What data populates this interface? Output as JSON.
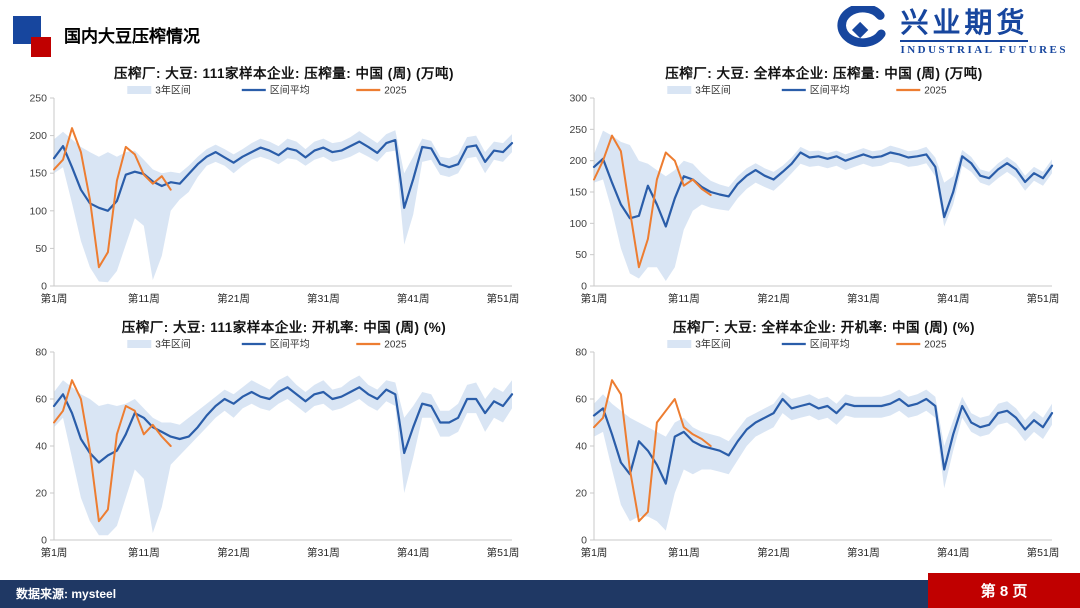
{
  "header": {
    "title": "国内大豆压榨情况"
  },
  "logo": {
    "cn": "兴业期货",
    "en": "INDUSTRIAL FUTURES",
    "icon": "swirl-logo-icon"
  },
  "footer": {
    "source_label": "数据来源:",
    "source_value": "mysteel",
    "page_label": "第 8 页"
  },
  "colors": {
    "band": "#d9e5f4",
    "mean": "#2a5da9",
    "y2025": "#ed7d31",
    "axis": "#c9c9c9",
    "navy": "#1f3864",
    "red": "#c00000",
    "brand_blue": "#17469e"
  },
  "chart_data": [
    {
      "type": "line",
      "title": "压榨厂: 大豆: 111家样本企业: 压榨量: 中国 (周)  (万吨)",
      "ylabel": "万吨",
      "ylim": [
        0,
        250
      ],
      "yticks": [
        0,
        50,
        100,
        150,
        200,
        250
      ],
      "x": {
        "weeks": 52,
        "tick_weeks": [
          1,
          11,
          21,
          31,
          41,
          51
        ],
        "tick_labels": [
          "第1周",
          "第11周",
          "第21周",
          "第31周",
          "第41周",
          "第51周"
        ]
      },
      "legend": [
        "3年区间",
        "区间平均",
        "2025"
      ],
      "band": {
        "name": "3年区间",
        "lower": [
          150,
          158,
          110,
          60,
          25,
          6,
          5,
          20,
          55,
          90,
          80,
          8,
          40,
          100,
          115,
          125,
          145,
          160,
          165,
          160,
          150,
          160,
          168,
          172,
          168,
          162,
          170,
          168,
          160,
          168,
          172,
          165,
          168,
          172,
          178,
          172,
          165,
          178,
          180,
          55,
          95,
          165,
          168,
          148,
          145,
          150,
          170,
          172,
          150,
          168,
          165,
          178
        ],
        "upper": [
          195,
          205,
          195,
          185,
          178,
          172,
          178,
          172,
          178,
          180,
          168,
          155,
          150,
          152,
          150,
          160,
          172,
          182,
          188,
          182,
          175,
          182,
          190,
          196,
          192,
          186,
          196,
          192,
          182,
          192,
          196,
          190,
          192,
          198,
          206,
          198,
          190,
          202,
          207,
          150,
          172,
          196,
          193,
          172,
          170,
          175,
          198,
          200,
          178,
          192,
          190,
          202
        ]
      },
      "mean": {
        "name": "区间平均",
        "values": [
          170,
          186,
          158,
          128,
          110,
          104,
          100,
          113,
          148,
          152,
          149,
          139,
          133,
          138,
          136,
          149,
          162,
          172,
          178,
          171,
          164,
          172,
          178,
          184,
          180,
          174,
          183,
          180,
          171,
          180,
          184,
          178,
          180,
          186,
          192,
          185,
          177,
          190,
          194,
          104,
          142,
          185,
          183,
          162,
          158,
          162,
          185,
          187,
          165,
          180,
          178,
          190
        ]
      },
      "y2025": {
        "name": "2025",
        "values": [
          155,
          168,
          210,
          178,
          115,
          25,
          45,
          140,
          185,
          175,
          148,
          136,
          146,
          128
        ]
      }
    },
    {
      "type": "line",
      "title": "压榨厂: 大豆: 全样本企业: 压榨量: 中国 (周)  (万吨)",
      "ylabel": "万吨",
      "ylim": [
        0,
        300
      ],
      "yticks": [
        0,
        50,
        100,
        150,
        200,
        250,
        300
      ],
      "x": {
        "weeks": 52,
        "tick_weeks": [
          1,
          11,
          21,
          31,
          41,
          51
        ],
        "tick_labels": [
          "第1周",
          "第11周",
          "第21周",
          "第31周",
          "第41周",
          "第51周"
        ]
      },
      "legend": [
        "3年区间",
        "区间平均",
        "2025"
      ],
      "band": {
        "name": "3年区间",
        "lower": [
          165,
          170,
          120,
          60,
          20,
          12,
          30,
          30,
          8,
          30,
          90,
          120,
          130,
          125,
          122,
          120,
          140,
          155,
          165,
          158,
          152,
          165,
          180,
          195,
          190,
          192,
          188,
          192,
          185,
          190,
          195,
          190,
          192,
          198,
          196,
          190,
          192,
          196,
          175,
          95,
          130,
          192,
          182,
          165,
          160,
          172,
          182,
          172,
          152,
          168,
          160,
          180
        ],
        "upper": [
          210,
          248,
          240,
          230,
          225,
          200,
          195,
          185,
          175,
          185,
          200,
          195,
          180,
          168,
          162,
          158,
          175,
          188,
          196,
          188,
          182,
          192,
          205,
          222,
          215,
          216,
          212,
          216,
          210,
          215,
          220,
          215,
          217,
          224,
          220,
          215,
          217,
          222,
          205,
          165,
          175,
          217,
          206,
          186,
          182,
          196,
          206,
          196,
          176,
          190,
          182,
          202
        ]
      },
      "mean": {
        "name": "区间平均",
        "values": [
          190,
          203,
          165,
          130,
          108,
          112,
          160,
          130,
          95,
          140,
          175,
          170,
          158,
          150,
          146,
          143,
          163,
          176,
          185,
          176,
          170,
          182,
          195,
          213,
          205,
          207,
          203,
          207,
          200,
          205,
          210,
          205,
          207,
          213,
          210,
          205,
          207,
          210,
          190,
          110,
          150,
          207,
          196,
          176,
          172,
          186,
          196,
          186,
          166,
          180,
          172,
          192
        ]
      },
      "y2025": {
        "name": "2025",
        "values": [
          170,
          200,
          240,
          215,
          120,
          30,
          75,
          170,
          213,
          200,
          160,
          170,
          155,
          145
        ]
      }
    },
    {
      "type": "line",
      "title": "压榨厂: 大豆: 111家样本企业: 开机率: 中国 (周)  (%)",
      "ylabel": "%",
      "ylim": [
        0,
        80
      ],
      "yticks": [
        0,
        20,
        40,
        60,
        80
      ],
      "x": {
        "weeks": 52,
        "tick_weeks": [
          1,
          11,
          21,
          31,
          41,
          51
        ],
        "tick_labels": [
          "第1周",
          "第11周",
          "第21周",
          "第31周",
          "第41周",
          "第51周"
        ]
      },
      "legend": [
        "3年区间",
        "区间平均",
        "2025"
      ],
      "band": {
        "name": "3年区间",
        "lower": [
          48,
          52,
          35,
          18,
          8,
          2,
          2,
          6,
          18,
          30,
          26,
          3,
          14,
          32,
          36,
          40,
          44,
          48,
          52,
          55,
          52,
          56,
          58,
          56,
          55,
          58,
          60,
          57,
          54,
          57,
          58,
          55,
          56,
          58,
          60,
          57,
          55,
          59,
          57,
          20,
          35,
          52,
          52,
          44,
          44,
          46,
          54,
          54,
          46,
          52,
          50,
          56
        ],
        "upper": [
          63,
          68,
          65,
          62,
          60,
          57,
          58,
          57,
          58,
          60,
          56,
          52,
          50,
          50,
          49,
          52,
          55,
          58,
          61,
          64,
          62,
          65,
          68,
          66,
          64,
          68,
          70,
          66,
          63,
          66,
          68,
          64,
          65,
          68,
          70,
          66,
          64,
          68,
          67,
          52,
          57,
          63,
          62,
          55,
          55,
          58,
          66,
          67,
          60,
          65,
          63,
          68
        ]
      },
      "mean": {
        "name": "区间平均",
        "values": [
          57,
          62,
          54,
          43,
          37,
          33,
          36,
          38,
          45,
          54,
          52,
          48,
          46,
          44,
          43,
          44,
          48,
          53,
          57,
          60,
          58,
          61,
          63,
          61,
          60,
          63,
          65,
          62,
          59,
          62,
          63,
          60,
          61,
          63,
          65,
          62,
          60,
          64,
          62,
          37,
          48,
          58,
          57,
          50,
          50,
          52,
          60,
          60,
          54,
          59,
          57,
          62
        ]
      },
      "y2025": {
        "name": "2025",
        "values": [
          50,
          55,
          68,
          60,
          38,
          8,
          13,
          45,
          57,
          55,
          45,
          49,
          44,
          40
        ]
      }
    },
    {
      "type": "line",
      "title": "压榨厂: 大豆: 全样本企业: 开机率: 中国 (周)  (%)",
      "ylabel": "%",
      "ylim": [
        0,
        80
      ],
      "yticks": [
        0,
        20,
        40,
        60,
        80
      ],
      "x": {
        "weeks": 52,
        "tick_weeks": [
          1,
          11,
          21,
          31,
          41,
          51
        ],
        "tick_labels": [
          "第1周",
          "第11周",
          "第21周",
          "第31周",
          "第41周",
          "第51周"
        ]
      },
      "legend": [
        "3年区间",
        "区间平均",
        "2025"
      ],
      "band": {
        "name": "3年区间",
        "lower": [
          44,
          46,
          30,
          15,
          8,
          10,
          10,
          8,
          4,
          20,
          30,
          28,
          30,
          30,
          29,
          28,
          34,
          40,
          44,
          46,
          48,
          54,
          51,
          52,
          53,
          51,
          52,
          49,
          53,
          52,
          52,
          52,
          52,
          53,
          55,
          52,
          53,
          55,
          52,
          22,
          38,
          52,
          46,
          44,
          45,
          49,
          50,
          47,
          42,
          46,
          43,
          49
        ],
        "upper": [
          58,
          62,
          58,
          55,
          52,
          50,
          48,
          46,
          44,
          50,
          52,
          48,
          46,
          45,
          44,
          42,
          47,
          52,
          54,
          56,
          58,
          63,
          60,
          61,
          62,
          60,
          61,
          58,
          62,
          61,
          61,
          61,
          61,
          62,
          64,
          61,
          62,
          64,
          61,
          40,
          51,
          61,
          54,
          52,
          53,
          58,
          59,
          56,
          51,
          55,
          52,
          58
        ]
      },
      "mean": {
        "name": "区间平均",
        "values": [
          53,
          56,
          45,
          33,
          28,
          42,
          38,
          32,
          24,
          44,
          46,
          42,
          40,
          39,
          38,
          36,
          42,
          47,
          50,
          52,
          54,
          60,
          56,
          57,
          58,
          56,
          57,
          54,
          58,
          57,
          57,
          57,
          57,
          58,
          60,
          57,
          58,
          60,
          57,
          30,
          45,
          57,
          50,
          48,
          49,
          54,
          55,
          52,
          47,
          51,
          48,
          54
        ]
      },
      "y2025": {
        "name": "2025",
        "values": [
          48,
          52,
          68,
          62,
          30,
          8,
          12,
          50,
          55,
          60,
          48,
          45,
          43,
          40
        ]
      }
    }
  ]
}
